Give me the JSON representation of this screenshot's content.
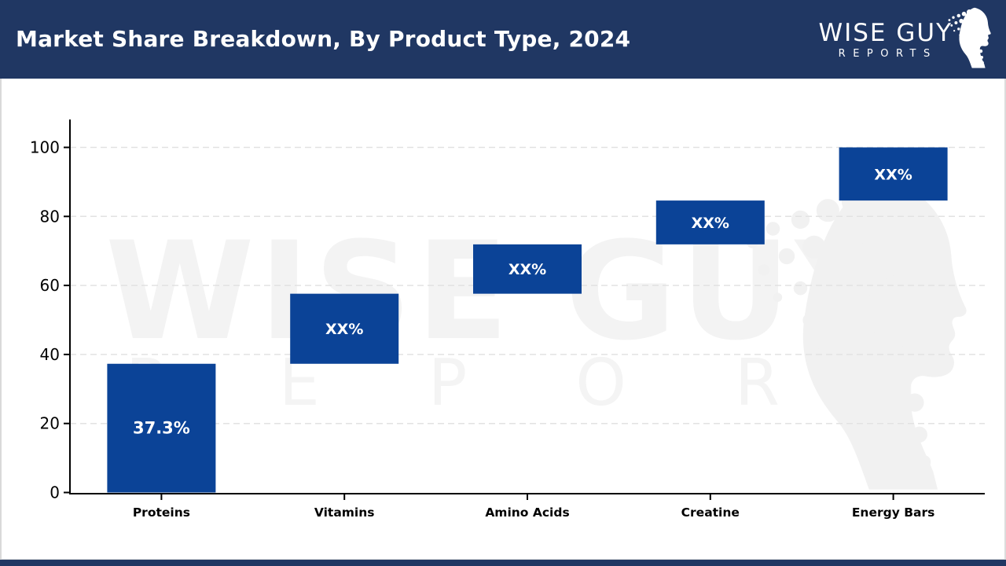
{
  "header": {
    "title": "Market Share Breakdown, By Product Type, 2024",
    "logo": {
      "line1": "WISE GUY",
      "line2": "REPORTS"
    }
  },
  "watermark": {
    "line1": "WISE GUY",
    "line2": "REPORTS"
  },
  "colors": {
    "header_bg": "#203763",
    "bar_fill": "#0b4397",
    "bar_label": "#ffffff",
    "grid_line": "#e2e2e2",
    "axis": "#000000",
    "watermark": "#f3f3f3"
  },
  "chart_data": {
    "type": "bar",
    "variant": "waterfall",
    "title": "Market Share Breakdown, By Product Type, 2024",
    "categories": [
      "Proteins",
      "Vitamins",
      "Amino Acids",
      "Creatine",
      "Energy Bars"
    ],
    "bars": [
      {
        "category": "Proteins",
        "start": 0,
        "end": 37.3,
        "label": "37.3%"
      },
      {
        "category": "Vitamins",
        "start": 37.3,
        "end": 57.6,
        "label": "XX%"
      },
      {
        "category": "Amino Acids",
        "start": 57.6,
        "end": 71.9,
        "label": "XX%"
      },
      {
        "category": "Creatine",
        "start": 71.9,
        "end": 84.6,
        "label": "XX%"
      },
      {
        "category": "Energy Bars",
        "start": 84.6,
        "end": 100,
        "label": "XX%"
      }
    ],
    "xlabel": "",
    "ylabel": "",
    "ylim": [
      0,
      108
    ],
    "yticks": [
      0,
      20,
      40,
      60,
      80,
      100
    ],
    "grid": true,
    "grid_style": "dashed",
    "legend": "none"
  }
}
